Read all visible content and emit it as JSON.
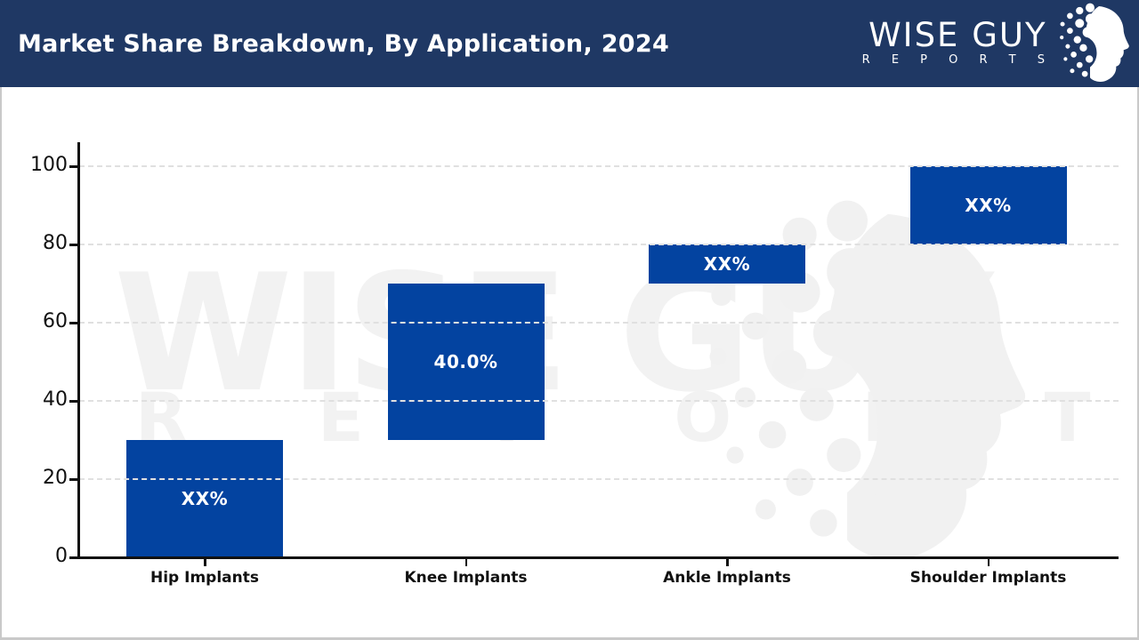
{
  "header": {
    "title": "Market Share Breakdown, By Application, 2024",
    "bg_color": "#1f3864",
    "logo": {
      "line1": "WISE GUY",
      "line2": "R E P O R T S"
    }
  },
  "watermark": {
    "line1": "WISE GUY",
    "line2": "R E P O R T S"
  },
  "chart_data": {
    "type": "bar",
    "subtype": "waterfall",
    "title": "Market Share Breakdown, By Application, 2024",
    "categories": [
      "Hip Implants",
      "Knee Implants",
      "Ankle Implants",
      "Shoulder Implants"
    ],
    "segments": [
      {
        "category": "Hip Implants",
        "start": 0,
        "end": 30,
        "value_label": "XX%"
      },
      {
        "category": "Knee Implants",
        "start": 30,
        "end": 70,
        "value_label": "40.0%"
      },
      {
        "category": "Ankle Implants",
        "start": 70,
        "end": 80,
        "value_label": "XX%"
      },
      {
        "category": "Shoulder Implants",
        "start": 80,
        "end": 100,
        "value_label": "XX%"
      }
    ],
    "y_ticks": [
      0,
      20,
      40,
      60,
      80,
      100
    ],
    "ylim": [
      0,
      100
    ],
    "xlabel": "",
    "ylabel": "",
    "grid": "horizontal-dashed-over-bars",
    "legend": "none",
    "bar_color": "#0343a0",
    "grid_color": "#e0e0e0",
    "axis_color": "#111111"
  }
}
